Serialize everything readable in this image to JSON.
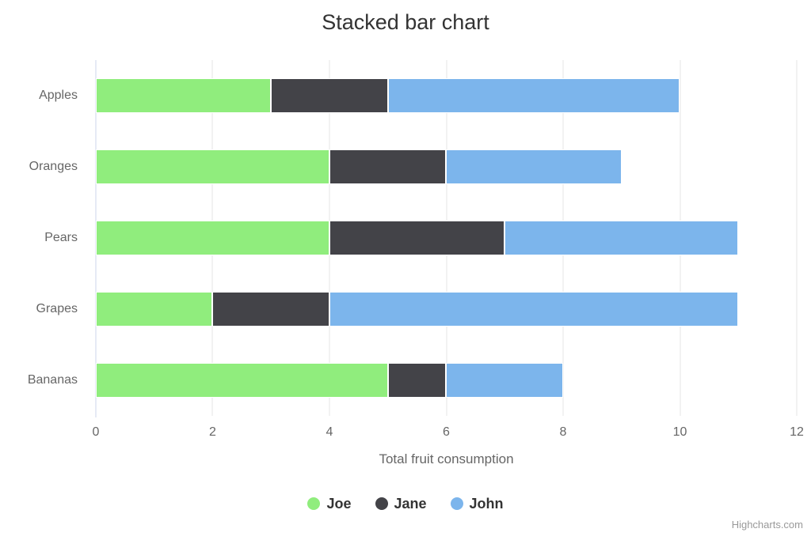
{
  "chart_data": {
    "type": "bar",
    "stacked": true,
    "title": "Stacked bar chart",
    "categories": [
      "Apples",
      "Oranges",
      "Pears",
      "Grapes",
      "Bananas"
    ],
    "series": [
      {
        "name": "Joe",
        "color": "#90ed7d",
        "values": [
          3,
          4,
          4,
          2,
          5
        ]
      },
      {
        "name": "Jane",
        "color": "#434348",
        "values": [
          2,
          2,
          3,
          2,
          1
        ]
      },
      {
        "name": "John",
        "color": "#7cb5ec",
        "values": [
          5,
          3,
          4,
          7,
          2
        ]
      }
    ],
    "totals": [
      10,
      9,
      11,
      11,
      8
    ],
    "xlabel": "Total fruit consumption",
    "xlim": [
      0,
      12
    ],
    "xticks": [
      0,
      2,
      4,
      6,
      8,
      10,
      12
    ],
    "grid": true,
    "legend_position": "bottom-center"
  },
  "colors": {
    "grid": "#e6e6e6",
    "axis_line": "#ccd6eb",
    "title_text": "#333333",
    "label_text": "#666666",
    "legend_text": "#333333",
    "credits_text": "#999999",
    "background": "#ffffff"
  },
  "credits": {
    "label": "Highcharts.com"
  }
}
